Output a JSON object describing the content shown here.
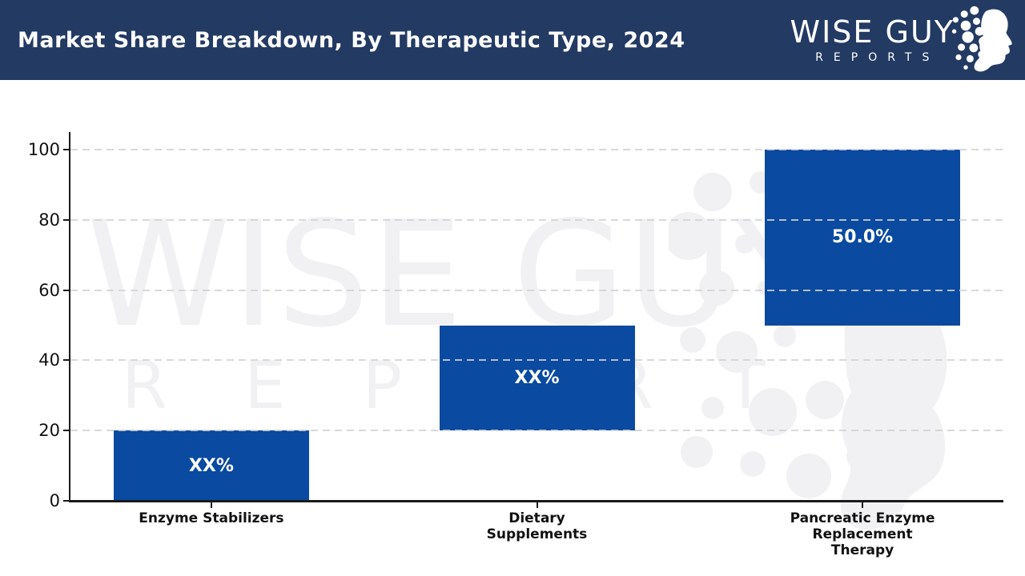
{
  "header": {
    "title": "Market Share Breakdown, By Therapeutic Type, 2024",
    "background_color": "#233a63",
    "logo": {
      "line1": "WISE GUY",
      "line2": "REPORTS"
    }
  },
  "watermark": {
    "line1": "WISE GUY",
    "line2": "REPORTS"
  },
  "chart_data": {
    "type": "bar",
    "variant": "waterfall",
    "title": "Market Share Breakdown, By Therapeutic Type, 2024",
    "categories": [
      [
        "Enzyme Stabilizers"
      ],
      [
        "Dietary",
        "Supplements"
      ],
      [
        "Pancreatic Enzyme",
        "Replacement",
        "Therapy"
      ]
    ],
    "bars": [
      {
        "category": "Enzyme Stabilizers",
        "start": 0,
        "end": 20,
        "label": "XX%"
      },
      {
        "category": "Dietary Supplements",
        "start": 20,
        "end": 50,
        "label": "XX%"
      },
      {
        "category": "Pancreatic Enzyme Replacement Therapy",
        "start": 50,
        "end": 100,
        "label": "50.0%"
      }
    ],
    "yticks": [
      0,
      20,
      40,
      60,
      80,
      100
    ],
    "ylim": [
      0,
      105
    ],
    "xlabel": "",
    "ylabel": "",
    "legend": "none",
    "grid": "horizontal-dashed",
    "colors": {
      "bar": "#0a4aa0",
      "grid": "#d2d2d2",
      "axis": "#1a1a1a",
      "bar_label": "#ffffff",
      "watermark": "#f1f1f3"
    }
  }
}
